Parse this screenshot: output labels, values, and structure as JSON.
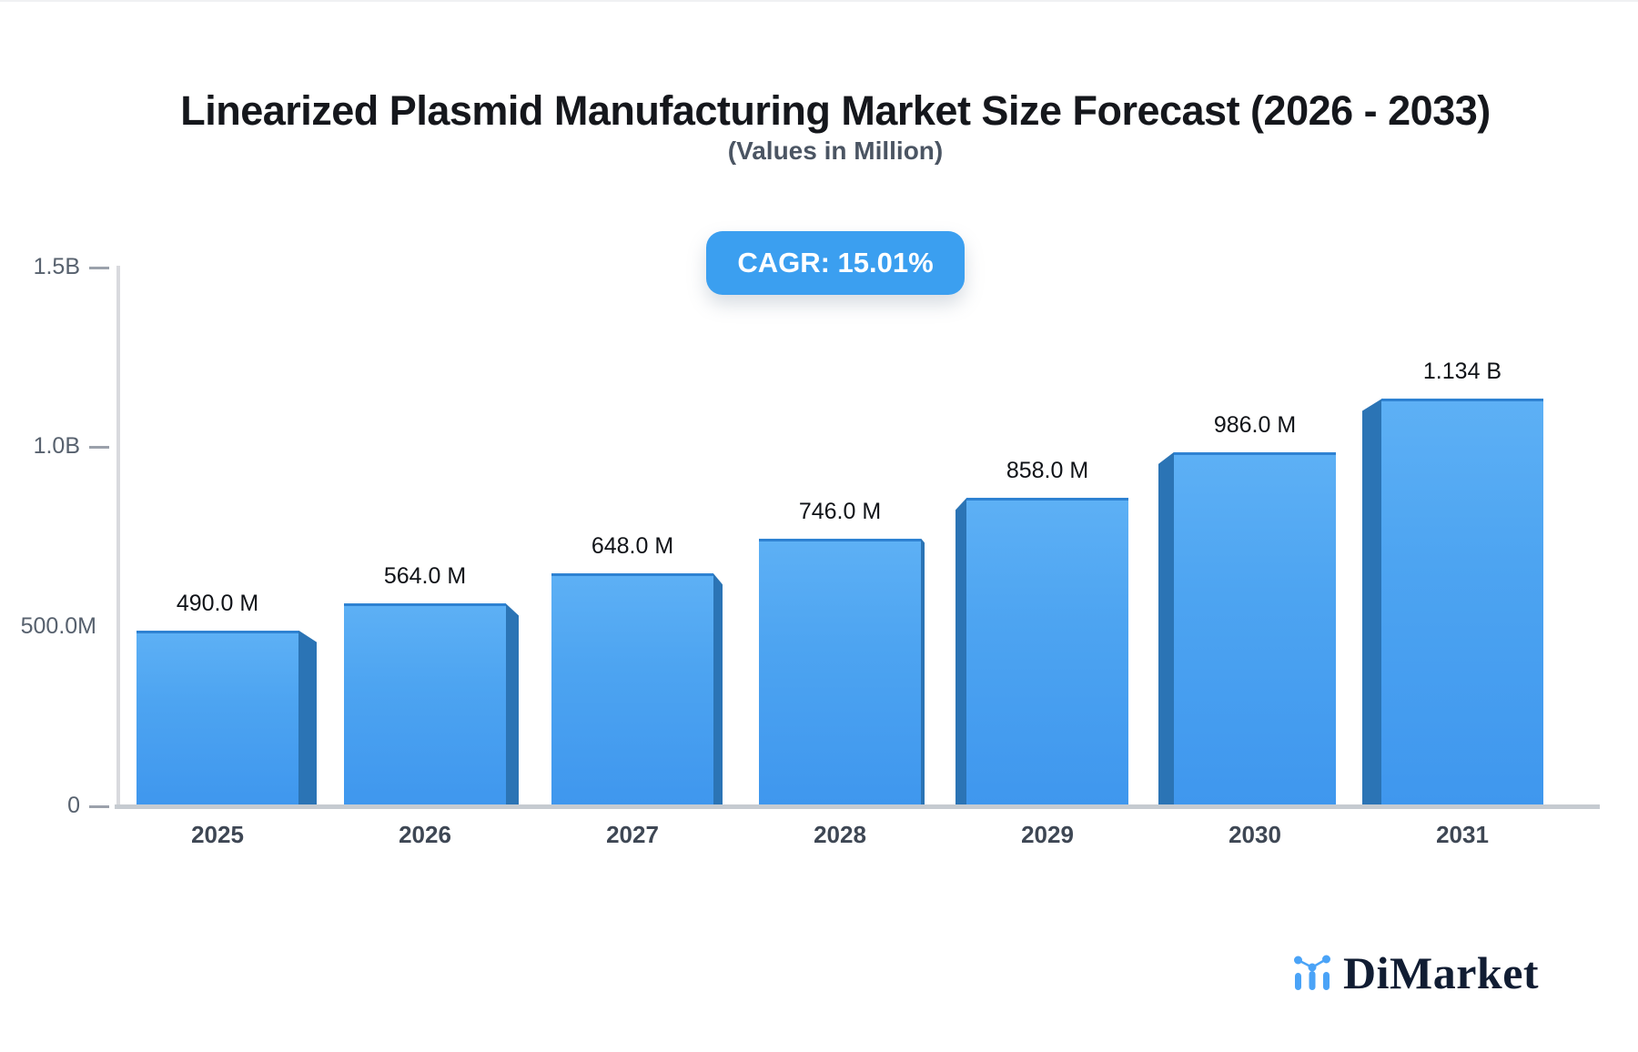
{
  "title": "Linearized Plasmid Manufacturing Market Size Forecast (2026 - 2033)",
  "subtitle": "(Values in Million)",
  "badge": {
    "label": "CAGR: 15.01%"
  },
  "chart_data": {
    "type": "bar",
    "title": "Linearized Plasmid Manufacturing Market Size Forecast (2026 - 2033)",
    "subtitle": "(Values in Million)",
    "categories": [
      "2025",
      "2026",
      "2027",
      "2028",
      "2029",
      "2030",
      "2031"
    ],
    "values": [
      490,
      564,
      648,
      746,
      858,
      986,
      1134
    ],
    "value_labels": [
      "490.0 M",
      "564.0 M",
      "648.0 M",
      "746.0 M",
      "858.0 M",
      "986.0 M",
      "1.134 B"
    ],
    "values_unit": "millions",
    "xlabel": "",
    "ylabel": "",
    "ylim": [
      0,
      1500
    ],
    "yticks": [
      {
        "value": 1500,
        "label": "1.5B",
        "dash": true
      },
      {
        "value": 1000,
        "label": "1.0B",
        "dash": true
      },
      {
        "value": 500,
        "label": "500.0M",
        "dash": false
      },
      {
        "value": 0,
        "label": "0",
        "dash": true
      }
    ],
    "grid": false,
    "legend": false,
    "annotations": [
      "CAGR: 15.01%"
    ],
    "colors": {
      "bar_face_top": "#5db0f5",
      "bar_face_bottom": "#3f97ee",
      "bar_side": "#2b74b5",
      "badge_background": "#3b9ff0",
      "badge_text": "#ffffff",
      "axis_line": "#c6cbd1",
      "tick_label": "#57616e",
      "title_text": "#15171c"
    }
  },
  "logo": {
    "text": "DiMarket"
  }
}
